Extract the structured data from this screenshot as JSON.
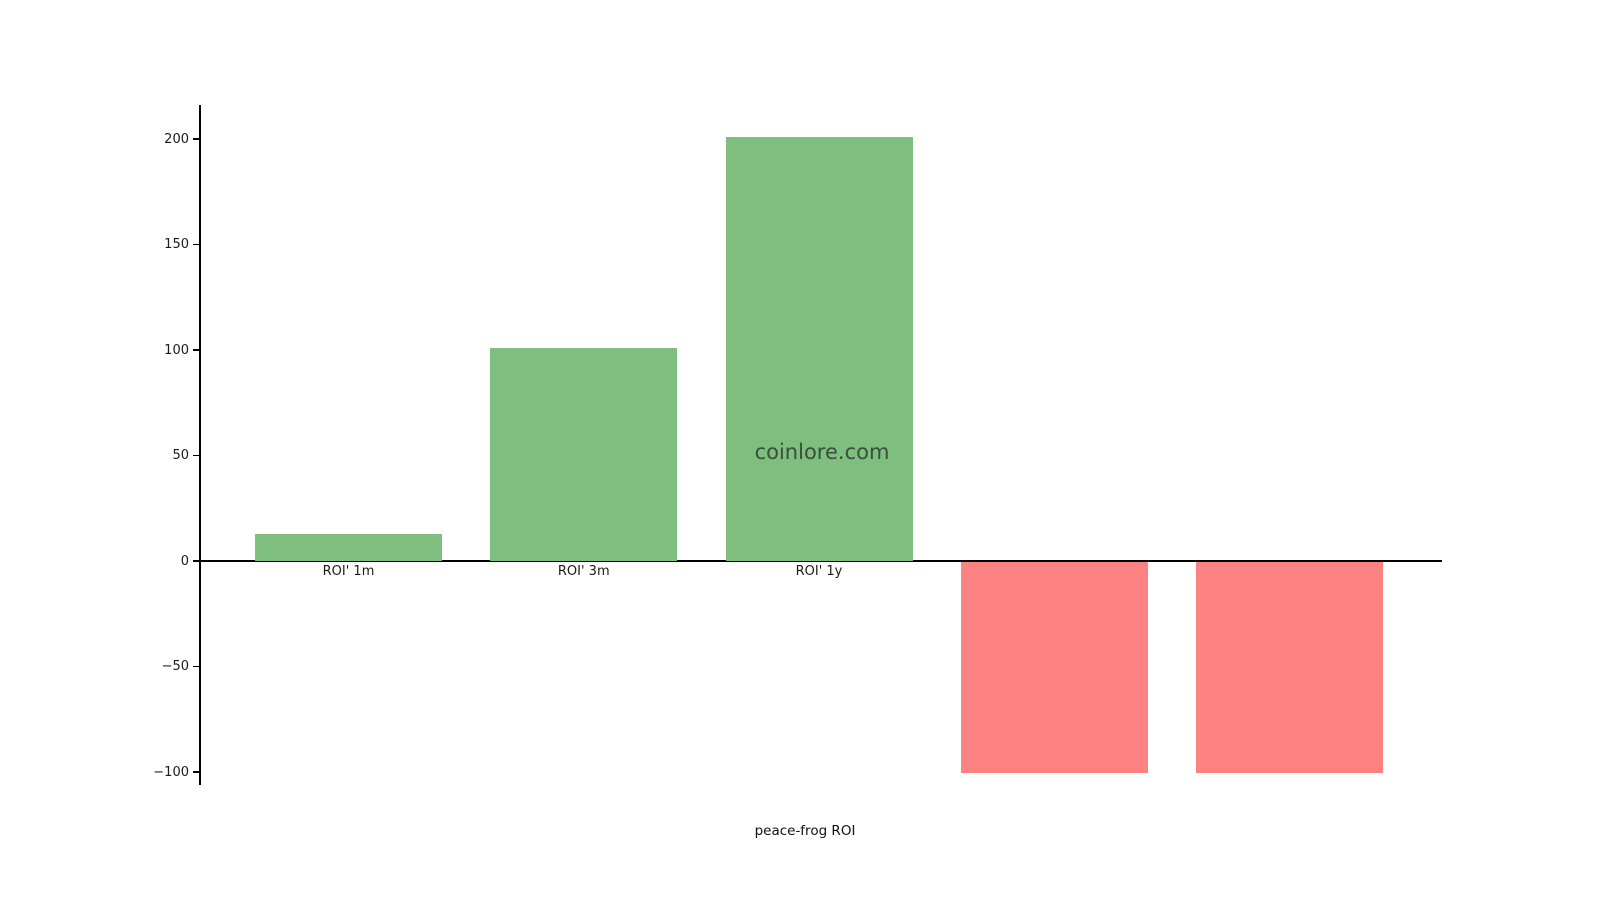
{
  "chart_data": {
    "type": "bar",
    "categories": [
      "ROI' 1m",
      "ROI' 3m",
      "ROI' 1y",
      "",
      ""
    ],
    "values": [
      13,
      101,
      201,
      -100,
      -100
    ],
    "title": "",
    "xlabel": "peace-frog ROI",
    "ylabel": "",
    "ylim": [
      -106,
      216
    ],
    "yticks": [
      200,
      150,
      100,
      50,
      0,
      -50,
      -100
    ],
    "grid": false,
    "legend": "none",
    "positive_color": "#7ebe7e",
    "negative_color": "#fc8181",
    "axis_color": "#000000",
    "tick_label_color": "#1a1a1a",
    "watermark": "coinlore.com"
  }
}
